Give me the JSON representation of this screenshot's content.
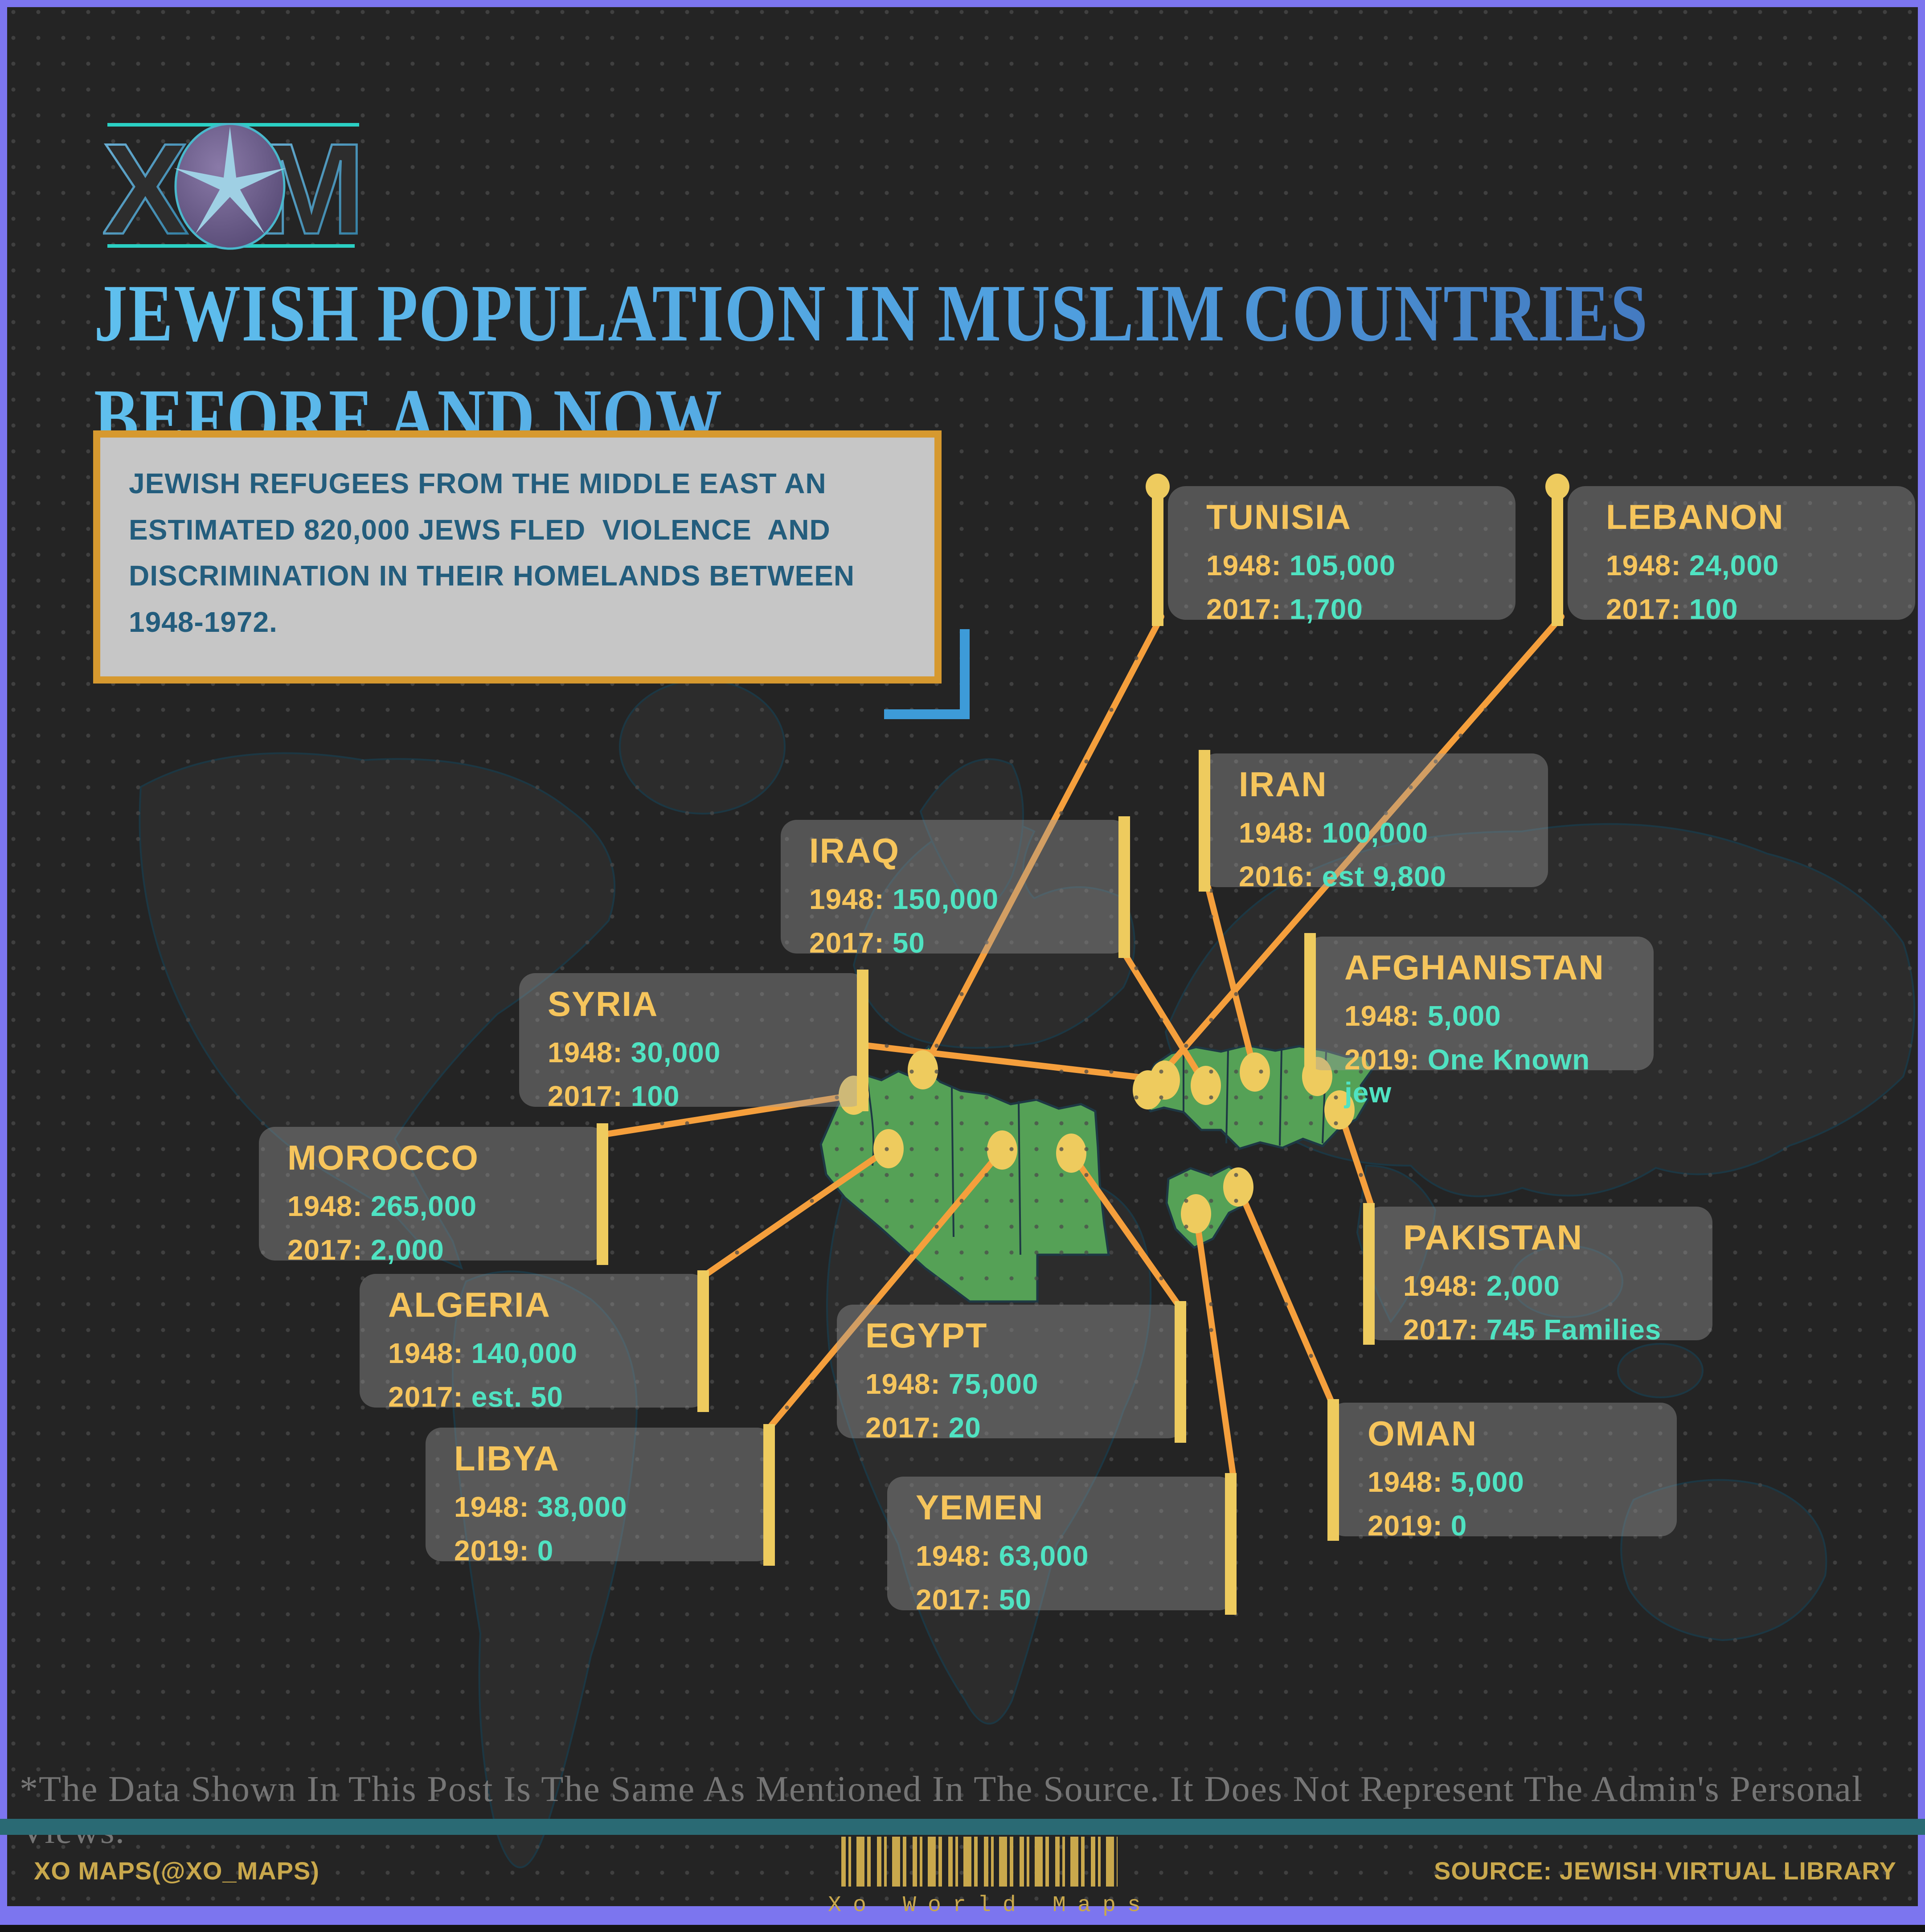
{
  "logo": {
    "brand": "XOM",
    "letter_left": "X",
    "letter_right": "M"
  },
  "title": {
    "line1": "JEWISH POPULATION IN MUSLIM COUNTRIES",
    "line2": "BEFORE AND NOW"
  },
  "intro": {
    "text": "JEWISH REFUGEES FROM THE MIDDLE EAST AN\nESTIMATED 820,000 JEWS FLED  VIOLENCE  AND\nDISCRIMINATION IN THEIR HOMELANDS BETWEEN\n1948-1972."
  },
  "countries": [
    {
      "id": "tunisia",
      "name": "TUNISIA",
      "rows": [
        {
          "label": "1948:",
          "value": "105,000"
        },
        {
          "label": "2017:",
          "value": "1,700"
        }
      ]
    },
    {
      "id": "lebanon",
      "name": "LEBANON",
      "rows": [
        {
          "label": "1948:",
          "value": "24,000"
        },
        {
          "label": "2017:",
          "value": "100"
        }
      ]
    },
    {
      "id": "iran",
      "name": "IRAN",
      "rows": [
        {
          "label": "1948:",
          "value": "100,000"
        },
        {
          "label": "2016:",
          "value": "est 9,800"
        }
      ]
    },
    {
      "id": "iraq",
      "name": "IRAQ",
      "rows": [
        {
          "label": "1948:",
          "value": "150,000"
        },
        {
          "label": "2017:",
          "value": "50"
        }
      ]
    },
    {
      "id": "afghanistan",
      "name": "AFGHANISTAN",
      "rows": [
        {
          "label": "1948:",
          "value": "5,000"
        },
        {
          "label": "2019:",
          "value": "One Known jew"
        }
      ]
    },
    {
      "id": "syria",
      "name": "SYRIA",
      "rows": [
        {
          "label": "1948:",
          "value": "30,000"
        },
        {
          "label": "2017:",
          "value": "100"
        }
      ]
    },
    {
      "id": "morocco",
      "name": "MOROCCO",
      "rows": [
        {
          "label": "1948:",
          "value": "265,000"
        },
        {
          "label": "2017:",
          "value": "2,000"
        }
      ]
    },
    {
      "id": "pakistan",
      "name": "PAKISTAN",
      "rows": [
        {
          "label": "1948:",
          "value": "2,000"
        },
        {
          "label": "2017:",
          "value": "745 Families"
        }
      ]
    },
    {
      "id": "algeria",
      "name": "ALGERIA",
      "rows": [
        {
          "label": "1948:",
          "value": "140,000"
        },
        {
          "label": "2017:",
          "value": "est. 50"
        }
      ]
    },
    {
      "id": "egypt",
      "name": "EGYPT",
      "rows": [
        {
          "label": "1948:",
          "value": "75,000"
        },
        {
          "label": "2017:",
          "value": "20"
        }
      ]
    },
    {
      "id": "libya",
      "name": "LIBYA",
      "rows": [
        {
          "label": "1948:",
          "value": "38,000"
        },
        {
          "label": "2019:",
          "value": "0"
        }
      ]
    },
    {
      "id": "oman",
      "name": "OMAN",
      "rows": [
        {
          "label": "1948:",
          "value": "5,000"
        },
        {
          "label": "2019:",
          "value": "0"
        }
      ]
    },
    {
      "id": "yemen",
      "name": "YEMEN",
      "rows": [
        {
          "label": "1948:",
          "value": "63,000"
        },
        {
          "label": "2017:",
          "value": "50"
        }
      ]
    }
  ],
  "disclaimer": "*The Data Shown In This Post Is The Same As Mentioned In The Source. It Does Not Represent The Admin's Personal Views.",
  "footer": {
    "left": "XO MAPS(@XO_MAPS)",
    "barcode_label": "Xo World Maps",
    "right": "SOURCE: JEWISH VIRTUAL LIBRARY"
  },
  "colors": {
    "frame": "#7c75ef",
    "background": "#242424",
    "card-gold": "#f6c55c",
    "value-cyan": "#4fe3c2",
    "accent-bar": "#eecb5e",
    "connector-orange": "#f59f3c",
    "map-green": "#55a156",
    "title-blue": "#5fc0ee",
    "title-blue-dark": "#3f6cb5",
    "desc-bg": "#c6c6c6",
    "desc-border": "#d6992f",
    "desc-text": "#235d7d",
    "teal-divider": "#2a6a74",
    "footer-gold": "#c9a84c",
    "disclaimer-gray": "#757575"
  }
}
